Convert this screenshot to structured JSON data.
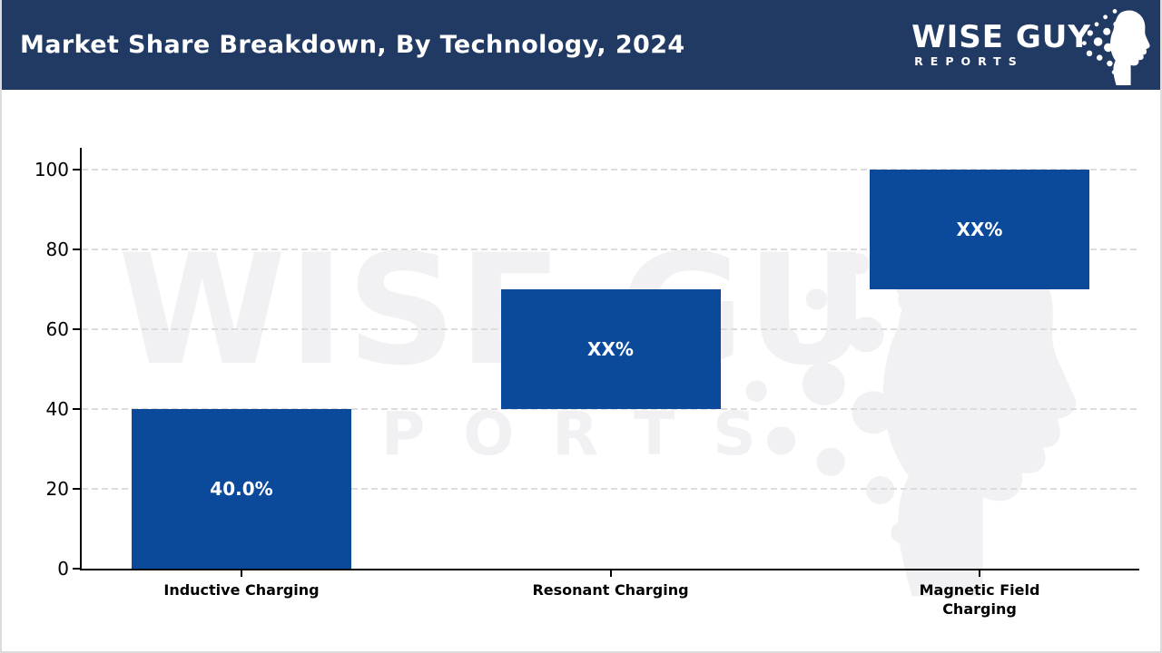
{
  "header": {
    "title": "Market Share Breakdown, By Technology, 2024",
    "logo": {
      "wordmark": "WISE GUY",
      "subtitle": "REPORTS"
    }
  },
  "watermark": {
    "line1": "WISE GUY",
    "line2": "REPORTS"
  },
  "colors": {
    "header_bg": "#213a63",
    "header_text": "#ffffff",
    "bar": "#0b4a9b",
    "bar_label_text": "#ffffff",
    "axis": "#000000",
    "tick_label_text": "#000000",
    "grid": "#dcdcdc",
    "watermark": "#f1f1f4",
    "canvas_bg": "#ffffff",
    "card_border": "#dcdcdc"
  },
  "chart_data": {
    "type": "bar",
    "subtype": "floating_segment_waterfall",
    "title": "Market Share Breakdown, By Technology, 2024",
    "categories": [
      "Inductive Charging",
      "Resonant Charging",
      "Magnetic Field\nCharging"
    ],
    "segments": [
      {
        "category": "Inductive Charging",
        "start": 0,
        "end": 40,
        "label": "40.0%"
      },
      {
        "category": "Resonant Charging",
        "start": 40,
        "end": 70,
        "label": "XX%"
      },
      {
        "category": "Magnetic Field Charging",
        "start": 70,
        "end": 100,
        "label": "XX%"
      }
    ],
    "xlabel": "",
    "ylabel": "",
    "ylim": [
      0,
      100
    ],
    "yticks": [
      0,
      20,
      40,
      60,
      80,
      100
    ],
    "grid": "horizontal-dashed",
    "legend": "none"
  }
}
